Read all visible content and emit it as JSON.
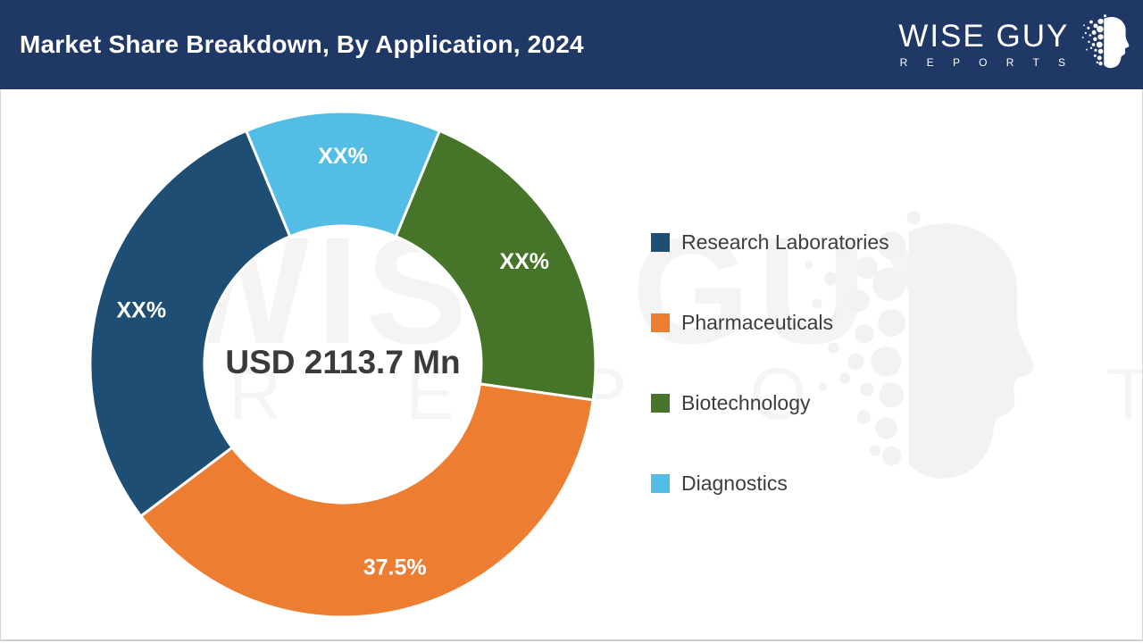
{
  "header": {
    "title": "Market Share Breakdown, By Application, 2024",
    "brand": {
      "line1": "WISE GUY",
      "line2": "R E P O R T S"
    }
  },
  "watermark": {
    "line1": "WISE GUY",
    "line2": "R E P O R T S"
  },
  "colors": {
    "header_bg": "#1F3866",
    "title_text": "#FFFFFF",
    "center_text": "#3A3A3A",
    "legend_text": "#3D3D3D",
    "slice_label_text": "#FFFFFF",
    "watermark": "#F4F4F4",
    "bottom_border": "#CFCFCF"
  },
  "chart_data": {
    "type": "pie",
    "subtype": "donut",
    "title": "Market Share Breakdown, By Application, 2024",
    "center_label": "USD 2113.7 Mn",
    "start_angle_deg": -22.5,
    "clockwise": true,
    "legend_position": "right",
    "segments": [
      {
        "label": "Research Laboratories",
        "value_pct": 29,
        "display_pct": "XX%",
        "color": "#1F4E74"
      },
      {
        "label": "Pharmaceuticals",
        "value_pct": 37.5,
        "display_pct": "37.5%",
        "color": "#ED7D31"
      },
      {
        "label": "Biotechnology",
        "value_pct": 21,
        "display_pct": "XX%",
        "color": "#467529"
      },
      {
        "label": "Diagnostics",
        "value_pct": 12.5,
        "display_pct": "XX%",
        "color": "#54BDE6"
      }
    ]
  }
}
